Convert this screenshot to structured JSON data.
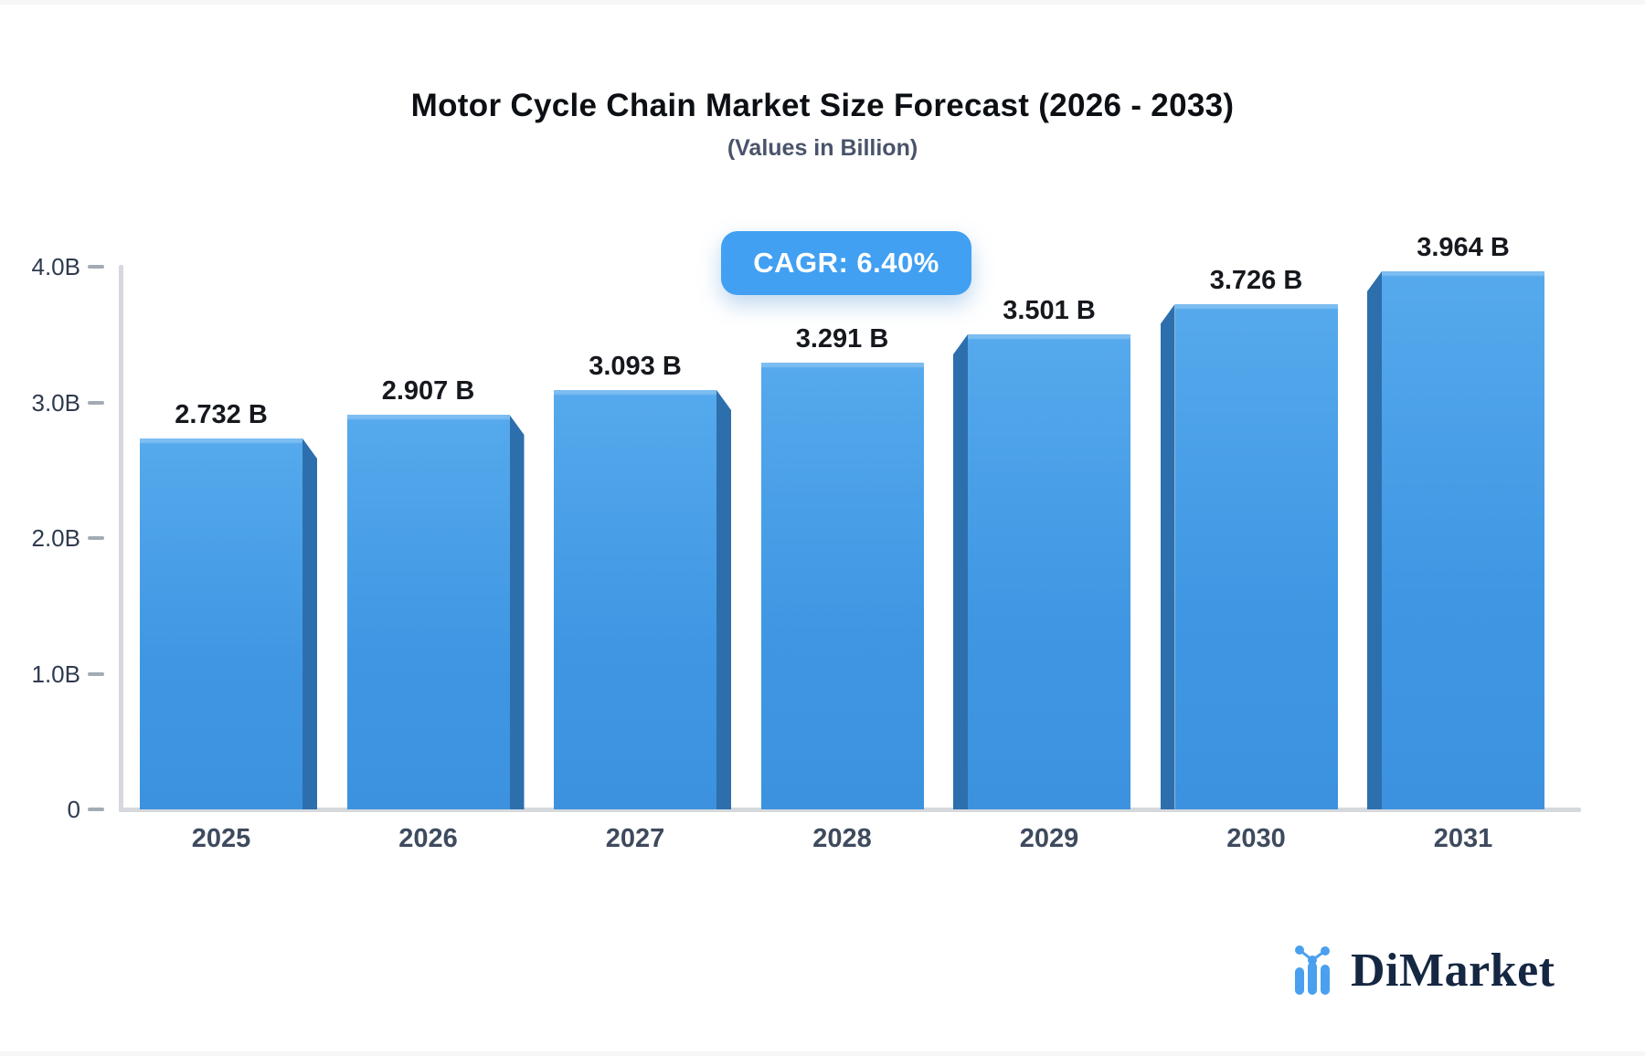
{
  "header": {
    "title": "Motor Cycle Chain Market Size Forecast (2026 - 2033)",
    "subtitle": "(Values in Billion)"
  },
  "badge": {
    "label": "CAGR: 6.40%"
  },
  "chart_data": {
    "type": "bar",
    "categories": [
      "2025",
      "2026",
      "2027",
      "2028",
      "2029",
      "2030",
      "2031"
    ],
    "values": [
      2.732,
      2.907,
      3.093,
      3.291,
      3.501,
      3.726,
      3.964
    ],
    "value_labels": [
      "2.732 B",
      "2.907 B",
      "3.093 B",
      "3.291 B",
      "3.501 B",
      "3.726 B",
      "3.964 B"
    ],
    "title": "Motor Cycle Chain Market Size Forecast (2026 - 2033)",
    "subtitle": "(Values in Billion)",
    "xlabel": "",
    "ylabel": "",
    "ylim": [
      0,
      4.0
    ],
    "yticks": [
      {
        "value": 0,
        "label": "0"
      },
      {
        "value": 1.0,
        "label": "1.0B"
      },
      {
        "value": 2.0,
        "label": "2.0B"
      },
      {
        "value": 3.0,
        "label": "3.0B"
      },
      {
        "value": 4.0,
        "label": "4.0B"
      }
    ],
    "grid": false,
    "legend": false,
    "bar_style": "3d-extruded"
  },
  "colors": {
    "bar_top_highlight": "#7cbdf2",
    "bar_face_light": "#55a9ec",
    "bar_face": "#3f97e3",
    "bar_face_deep": "#3c92de",
    "bar_side": "#2d6fad",
    "badge_bg": "#41a0f2",
    "axis_line": "#d5d9dd",
    "tick_mark": "#a3abb4",
    "axis_label": "#2e3a4e",
    "title_color": "#0c0f14",
    "subtitle_color": "#49546b",
    "logo_navy": "#152742",
    "logo_blue": "#4aa0ee"
  },
  "logo": {
    "text": "DiMarket",
    "icon": "mini-bar-line-chart-icon"
  }
}
